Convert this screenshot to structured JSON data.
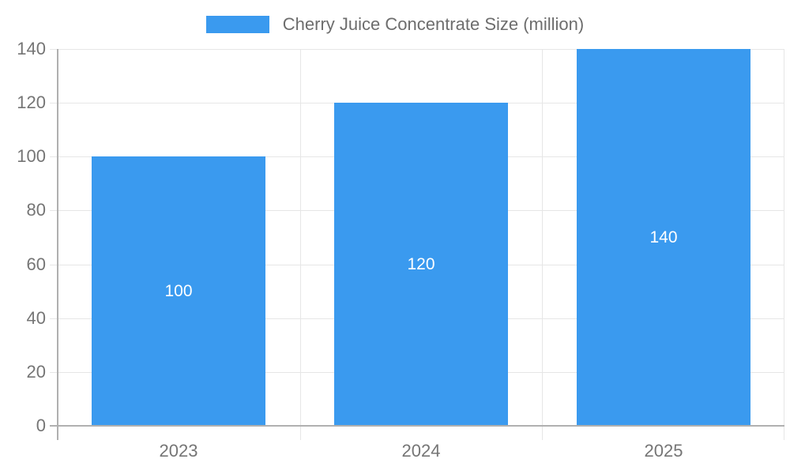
{
  "legend": {
    "label": "Cherry Juice Concentrate Size (million)"
  },
  "chart_data": {
    "type": "bar",
    "title": "Cherry Juice Concentrate Size (million)",
    "categories": [
      "2023",
      "2024",
      "2025"
    ],
    "values": [
      100,
      120,
      140
    ],
    "bar_labels": [
      "100",
      "120",
      "140"
    ],
    "xlabel": "",
    "ylabel": "",
    "ylim": [
      0,
      140
    ],
    "ytick_step": 20,
    "ytick_labels": [
      "0",
      "20",
      "40",
      "60",
      "80",
      "100",
      "120",
      "140"
    ],
    "grid": true,
    "legend_position": "top",
    "colors": {
      "bar": "#3a9aef",
      "bar_label": "#ffffff",
      "gridline": "#e6e6e6",
      "axis_line": "#b0b0b0",
      "tick_label": "#757575",
      "title": "#6d6d6d",
      "background": "#ffffff"
    }
  }
}
